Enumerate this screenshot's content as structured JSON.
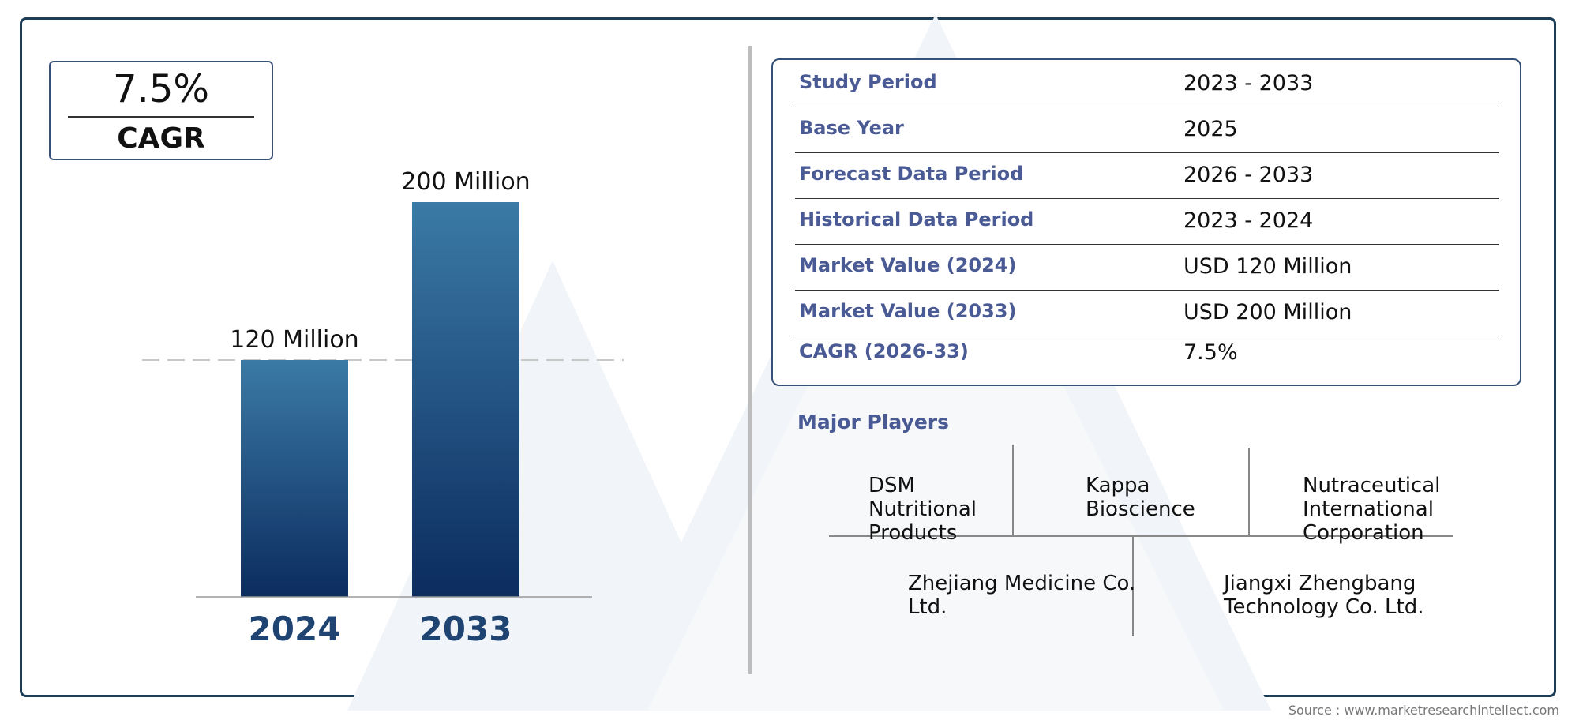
{
  "cagr_box": {
    "value": "7.5%",
    "label": "CAGR"
  },
  "chart_data": {
    "type": "bar",
    "categories": [
      "2024",
      "2033"
    ],
    "values": [
      120,
      200
    ],
    "value_labels": [
      "120 Million",
      "200 Million"
    ],
    "unit": "Million",
    "title": "",
    "xlabel": "",
    "ylabel": "",
    "ylim": [
      0,
      200
    ],
    "grid": false,
    "reference_line": {
      "value": 120,
      "style": "dashed"
    },
    "colors": {
      "bar_top": "#3b7aa6",
      "bar_bottom": "#0b2c5e",
      "year_label": "#1f4472"
    }
  },
  "info_table": {
    "rows": [
      {
        "key": "Study Period",
        "value": "2023 - 2033"
      },
      {
        "key": "Base Year",
        "value": "2025"
      },
      {
        "key": "Forecast Data Period",
        "value": "2026 - 2033"
      },
      {
        "key": "Historical Data Period",
        "value": "2023 - 2024"
      },
      {
        "key": "Market Value (2024)",
        "value": "USD 120 Million"
      },
      {
        "key": "Market Value (2033)",
        "value": "USD 200 Million"
      },
      {
        "key": "CAGR (2026-33)",
        "value": "7.5%"
      }
    ]
  },
  "players": {
    "title": "Major Players",
    "items": [
      [
        "DSM",
        "Nutritional",
        "Products"
      ],
      [
        "Kappa",
        "Bioscience"
      ],
      [
        "Nutraceutical",
        "International",
        "Corporation"
      ],
      [
        "Zhejiang Medicine Co.",
        "Ltd."
      ],
      [
        "Jiangxi Zhengbang",
        "Technology Co. Ltd."
      ]
    ]
  },
  "source": "Source : www.marketresearchintellect.com",
  "colors": {
    "frame": "#1c3d57",
    "key_text": "#4a5a94",
    "accent": "#36507a"
  }
}
